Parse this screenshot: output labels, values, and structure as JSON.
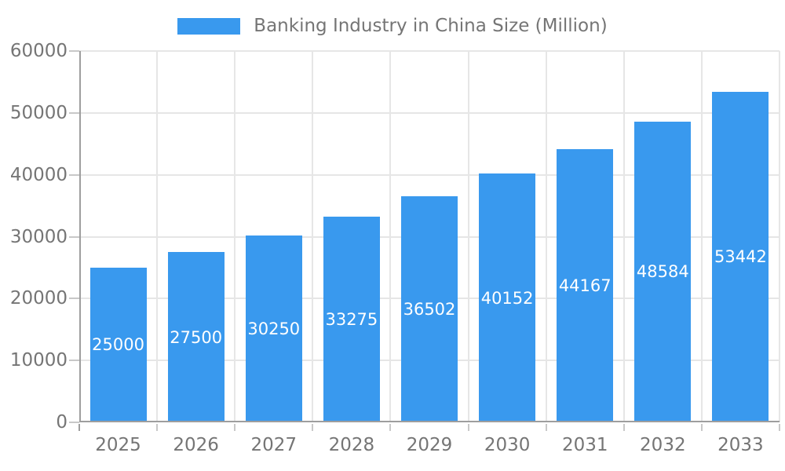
{
  "chart_data": {
    "type": "bar",
    "title": "Banking Industry in China Size (Million)",
    "legend_position": "top-center",
    "categories": [
      "2025",
      "2026",
      "2027",
      "2028",
      "2029",
      "2030",
      "2031",
      "2032",
      "2033"
    ],
    "values": [
      25000,
      27500,
      30250,
      33275,
      36502,
      40152,
      44167,
      48584,
      53442
    ],
    "series": [
      {
        "name": "Banking Industry in China Size (Million)",
        "values": [
          25000,
          27500,
          30250,
          33275,
          36502,
          40152,
          44167,
          48584,
          53442
        ]
      }
    ],
    "xlabel": "",
    "ylabel": "",
    "ylim": [
      0,
      60000
    ],
    "y_ticks": [
      0,
      10000,
      20000,
      30000,
      40000,
      50000,
      60000
    ],
    "grid": "horizontal and vertical light gray gridlines",
    "value_labels": "inside bars, centered, white",
    "colors": {
      "bar": "#3999EE",
      "axis_text": "#757575",
      "value_label_text": "#FFFFFF",
      "gridline": "#E6E6E6",
      "axis_line": "#9E9E9E",
      "tick_line": "#C8C8C8",
      "background": "#FFFFFF"
    }
  }
}
